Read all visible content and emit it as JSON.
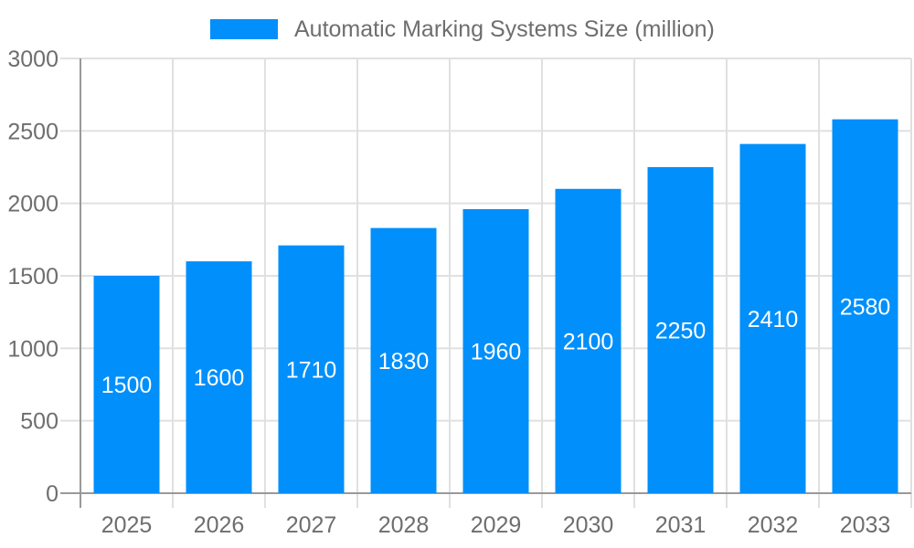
{
  "chart_data": {
    "type": "bar",
    "title": "Automatic Marking Systems Size (million)",
    "categories": [
      "2025",
      "2026",
      "2027",
      "2028",
      "2029",
      "2030",
      "2031",
      "2032",
      "2033"
    ],
    "values": [
      1500,
      1600,
      1710,
      1830,
      1960,
      2100,
      2250,
      2410,
      2580
    ],
    "xlabel": "",
    "ylabel": "",
    "ylim": [
      0,
      3000
    ],
    "yticks": [
      0,
      500,
      1000,
      1500,
      2000,
      2500,
      3000
    ],
    "grid": true,
    "legend_position": "top",
    "value_labels": "inside-center",
    "colors": {
      "bar": "#008FFB",
      "grid": "#e0e0e0",
      "axis": "#999999",
      "text": "#6e6e6e",
      "value_label": "#ffffff"
    }
  },
  "legend": {
    "label": "Automatic Marking Systems Size (million)"
  }
}
